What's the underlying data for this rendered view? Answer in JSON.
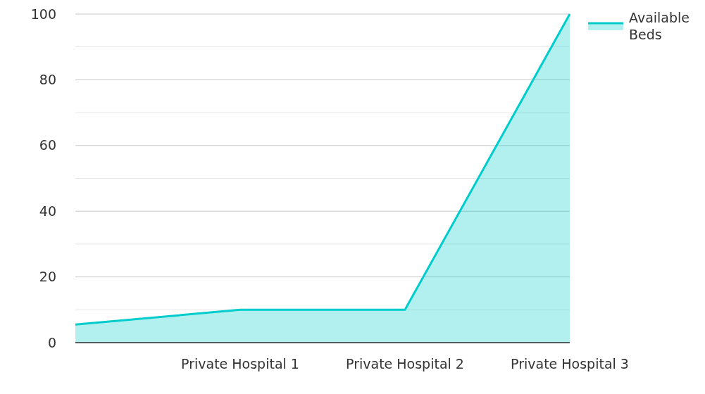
{
  "chart_data": {
    "type": "area",
    "categories": [
      null,
      "Private Hospital 1",
      "Private Hospital 2",
      "Private Hospital 3"
    ],
    "series": [
      {
        "name": "Available Beds",
        "color": "#00cccc",
        "values": [
          5.5,
          10,
          10,
          100
        ]
      }
    ],
    "ylim": [
      0,
      100
    ],
    "yticks": [
      0,
      {
        "value": 10,
        "label": null
      },
      20,
      {
        "value": 30,
        "label": null
      },
      40,
      {
        "value": 50,
        "label": null
      },
      60,
      {
        "value": 70,
        "label": null
      },
      80,
      {
        "value": 90,
        "label": null
      },
      100
    ],
    "grid": "y",
    "legend": "top right"
  }
}
